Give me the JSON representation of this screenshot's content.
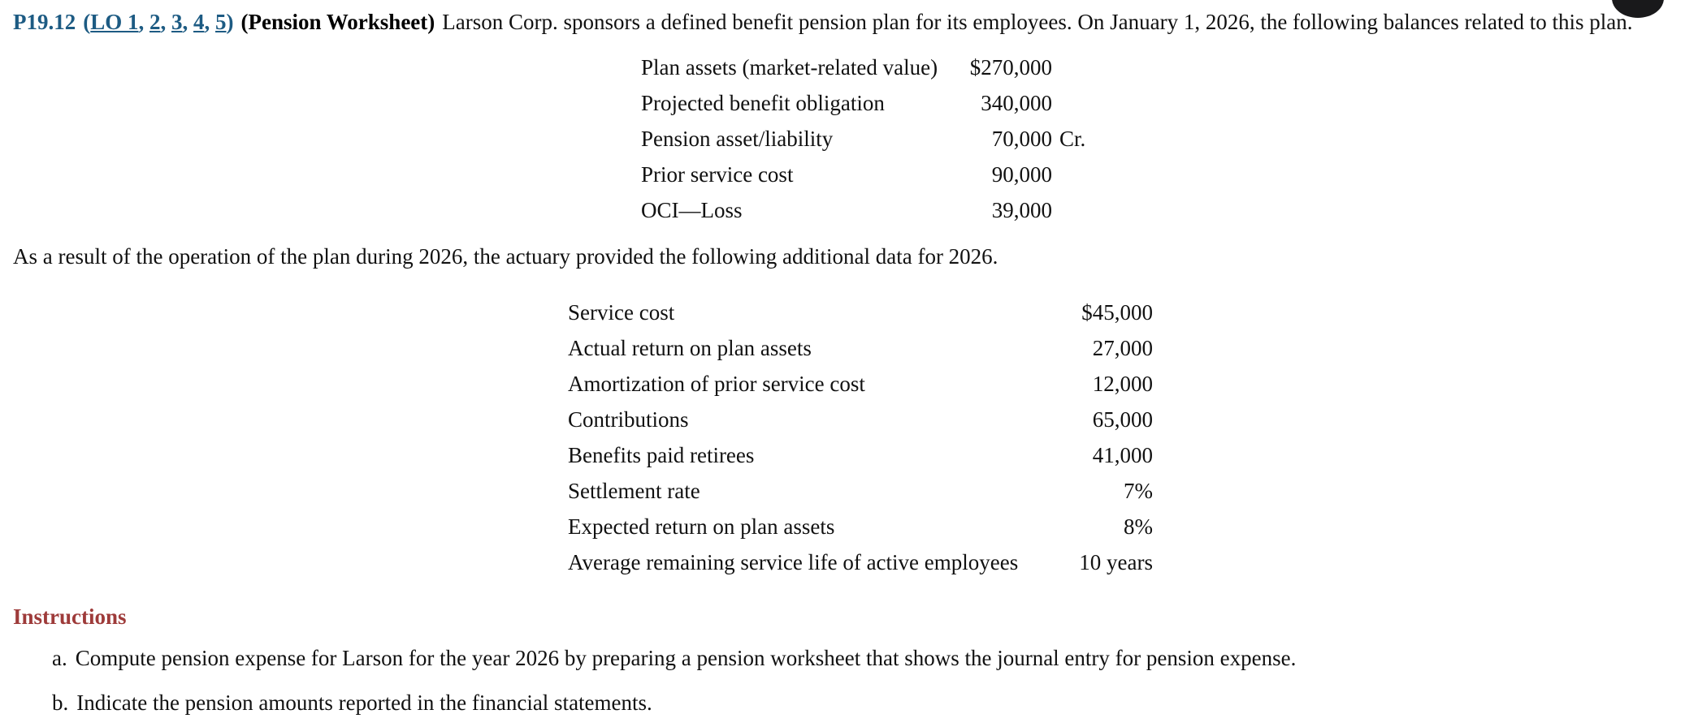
{
  "problem": {
    "number": "P19.12",
    "lo_open": "(",
    "lo_items": [
      "LO 1",
      "2",
      "3",
      "4",
      "5"
    ],
    "lo_separator": ", ",
    "lo_close": ")",
    "title": "(Pension Worksheet)",
    "intro_text": "Larson Corp. sponsors a defined benefit pension plan for its employees. On January 1, 2026, the following balances related to this plan."
  },
  "balances_table": {
    "rows": [
      {
        "label": "Plan assets (market-related value)",
        "value": "$270,000",
        "suffix": ""
      },
      {
        "label": "Projected benefit obligation",
        "value": "340,000",
        "suffix": ""
      },
      {
        "label": "Pension asset/liability",
        "value": "70,000",
        "suffix": "Cr."
      },
      {
        "label": "Prior service cost",
        "value": "90,000",
        "suffix": ""
      },
      {
        "label": "OCI—Loss",
        "value": "39,000",
        "suffix": ""
      }
    ]
  },
  "mid_paragraph": "As a result of the operation of the plan during 2026, the actuary provided the following additional data for 2026.",
  "data_table": {
    "rows": [
      {
        "label": "Service cost",
        "value": "$45,000"
      },
      {
        "label": "Actual return on plan assets",
        "value": "27,000"
      },
      {
        "label": "Amortization of prior service cost",
        "value": "12,000"
      },
      {
        "label": "Contributions",
        "value": "65,000"
      },
      {
        "label": "Benefits paid retirees",
        "value": "41,000"
      },
      {
        "label": "Settlement rate",
        "value": "7%"
      },
      {
        "label": "Expected return on plan assets",
        "value": "8%"
      },
      {
        "label": "Average remaining service life of active employees",
        "value": "10 years"
      }
    ]
  },
  "instructions": {
    "heading": "Instructions",
    "items": [
      {
        "marker": "a.",
        "text": "Compute pension expense for Larson for the year 2026 by preparing a pension worksheet that shows the journal entry for pension expense."
      },
      {
        "marker": "b.",
        "text": "Indicate the pension amounts reported in the financial statements."
      }
    ]
  },
  "colors": {
    "problem_link_blue": "#1d5b83",
    "instructions_heading_red": "#9e3b3a",
    "body_text": "#111111",
    "background": "#ffffff"
  }
}
